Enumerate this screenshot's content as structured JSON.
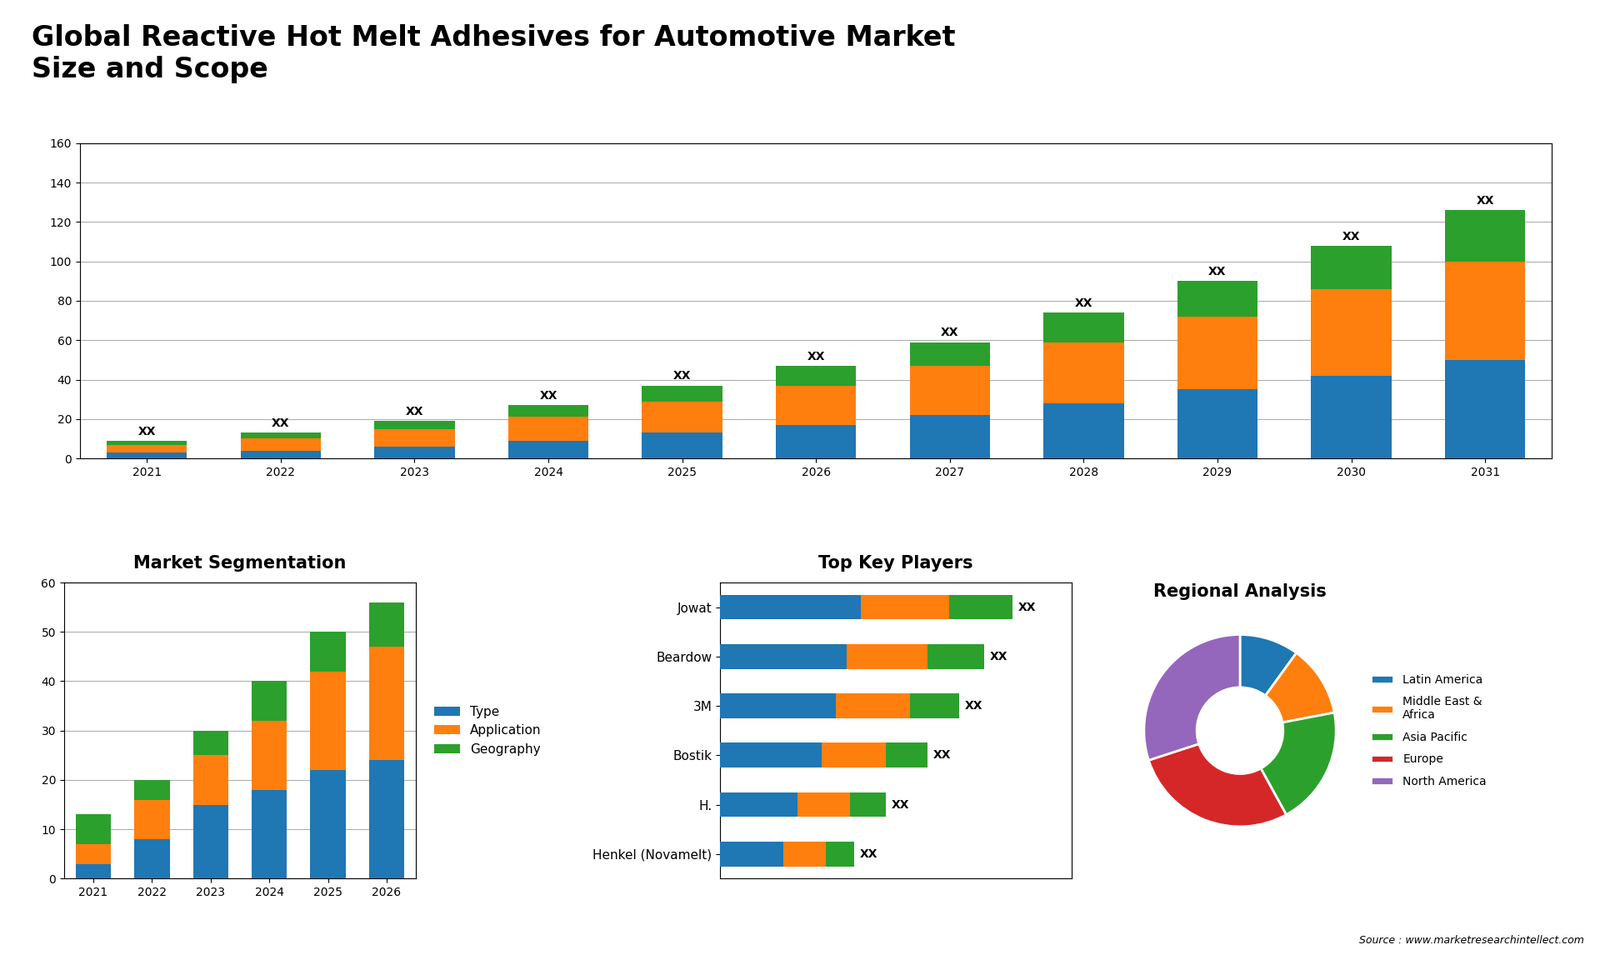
{
  "chart_data": [
    {
      "type": "bar",
      "title": "Global Reactive Hot Melt Adhesives for Automotive Market\nSize and Scope",
      "stacked": true,
      "categories": [
        "2021",
        "2022",
        "2023",
        "2024",
        "2025",
        "2026",
        "2027",
        "2028",
        "2029",
        "2030",
        "2031"
      ],
      "series": [
        {
          "color": "#1f77b4",
          "values": [
            3,
            4,
            6,
            9,
            13,
            17,
            22,
            28,
            35,
            42,
            50
          ]
        },
        {
          "color": "#ff7f0e",
          "values": [
            4,
            6,
            9,
            12,
            16,
            20,
            25,
            31,
            37,
            44,
            50
          ]
        },
        {
          "color": "#2ca02c",
          "values": [
            2,
            3,
            4,
            6,
            8,
            10,
            12,
            15,
            18,
            22,
            26
          ]
        }
      ],
      "ylim": [
        0,
        160
      ],
      "yticks": [
        0,
        20,
        40,
        60,
        80,
        100,
        120,
        140,
        160
      ],
      "grid": true,
      "annotations": [
        {
          "text": "XX",
          "category": "2021"
        },
        {
          "text": "XX",
          "category": "2022"
        },
        {
          "text": "XX",
          "category": "2023"
        },
        {
          "text": "XX",
          "category": "2024"
        },
        {
          "text": "XX",
          "category": "2025"
        },
        {
          "text": "XX",
          "category": "2026"
        },
        {
          "text": "XX",
          "category": "2027"
        },
        {
          "text": "XX",
          "category": "2028"
        },
        {
          "text": "XX",
          "category": "2029"
        },
        {
          "text": "XX",
          "category": "2030"
        },
        {
          "text": "XX",
          "category": "2031"
        }
      ]
    },
    {
      "type": "bar",
      "title": "Market Segmentation",
      "stacked": true,
      "categories": [
        "2021",
        "2022",
        "2023",
        "2024",
        "2025",
        "2026"
      ],
      "series": [
        {
          "name": "Type",
          "color": "#1f77b4",
          "values": [
            3,
            8,
            15,
            18,
            22,
            24
          ]
        },
        {
          "name": "Application",
          "color": "#ff7f0e",
          "values": [
            4,
            8,
            10,
            14,
            20,
            23
          ]
        },
        {
          "name": "Geography",
          "color": "#2ca02c",
          "values": [
            6,
            4,
            5,
            8,
            8,
            9
          ]
        }
      ],
      "ylim": [
        0,
        60
      ],
      "yticks": [
        0,
        10,
        20,
        30,
        40,
        50,
        60
      ],
      "grid": true,
      "legend": "center left"
    },
    {
      "type": "bar",
      "title": "Top Key Players",
      "orientation": "horizontal",
      "stacked": true,
      "categories": [
        "Jowat",
        "Beardow",
        "3M",
        "Bostik",
        "H.",
        "Henkel (Novamelt)"
      ],
      "series": [
        {
          "color": "#1f77b4",
          "values": [
            40,
            36,
            33,
            29,
            22,
            18
          ]
        },
        {
          "color": "#ff7f0e",
          "values": [
            25,
            23,
            21,
            18,
            15,
            12
          ]
        },
        {
          "color": "#2ca02c",
          "values": [
            18,
            16,
            14,
            12,
            10,
            8
          ]
        }
      ],
      "xlim": [
        0,
        100
      ],
      "tick_labels": "y",
      "annotations": [
        {
          "text": "XX",
          "category": "Jowat"
        },
        {
          "text": "XX",
          "category": "Beardow"
        },
        {
          "text": "XX",
          "category": "3M"
        },
        {
          "text": "XX",
          "category": "Bostik"
        },
        {
          "text": "XX",
          "category": "H."
        },
        {
          "text": "XX",
          "category": "Henkel (Novamelt)"
        }
      ]
    },
    {
      "type": "pie",
      "title": "Regional Analysis",
      "categories": [
        "Latin America",
        "Middle East &\nAfrica",
        "Asia Pacific",
        "Europe",
        "North America"
      ],
      "values": [
        10,
        12,
        20,
        28,
        30
      ],
      "colors": [
        "#1f77b4",
        "#ff7f0e",
        "#2ca02c",
        "#d62728",
        "#9467bd"
      ],
      "legend": "center left",
      "annotations": [
        {
          "text": "Source : www.marketresearchintellect.com"
        }
      ]
    }
  ]
}
